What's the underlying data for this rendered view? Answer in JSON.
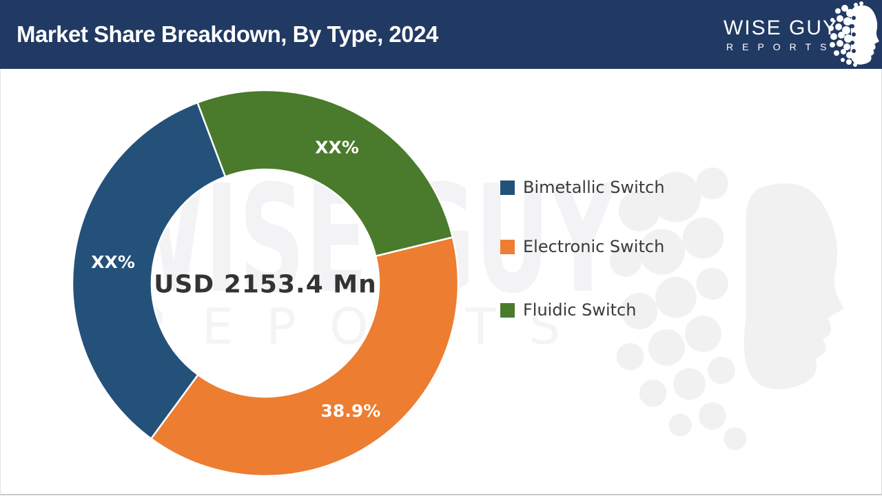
{
  "header": {
    "title": "Market Share Breakdown, By Type, 2024",
    "bg_color": "#213a63",
    "logo": {
      "wordmark": "WISE GUY",
      "subtext": "REPORTS"
    }
  },
  "chart_data": {
    "type": "pie",
    "variant": "donut",
    "title": "Market Share Breakdown, By Type, 2024",
    "center_label": "USD 2153.4 Mn",
    "start_angle_deg": -20.6,
    "direction": "clockwise",
    "legend_position": "right",
    "segments": [
      {
        "label": "Fluidic Switch",
        "value_pct": 26.9,
        "display_label": "XX%",
        "color": "#4a7a2b"
      },
      {
        "label": "Electronic Switch",
        "value_pct": 38.9,
        "display_label": "38.9%",
        "color": "#ed7d31"
      },
      {
        "label": "Bimetallic Switch",
        "value_pct": 34.2,
        "display_label": "XX%",
        "color": "#24517a"
      }
    ]
  },
  "legend": {
    "items": [
      {
        "label": "Bimetallic Switch",
        "color": "#24517a"
      },
      {
        "label": "Electronic Switch",
        "color": "#ed7d31"
      },
      {
        "label": "Fluidic Switch",
        "color": "#4a7a2b"
      }
    ]
  },
  "watermark": {
    "line1": "WISE GUY",
    "line2": "REPORTS"
  }
}
